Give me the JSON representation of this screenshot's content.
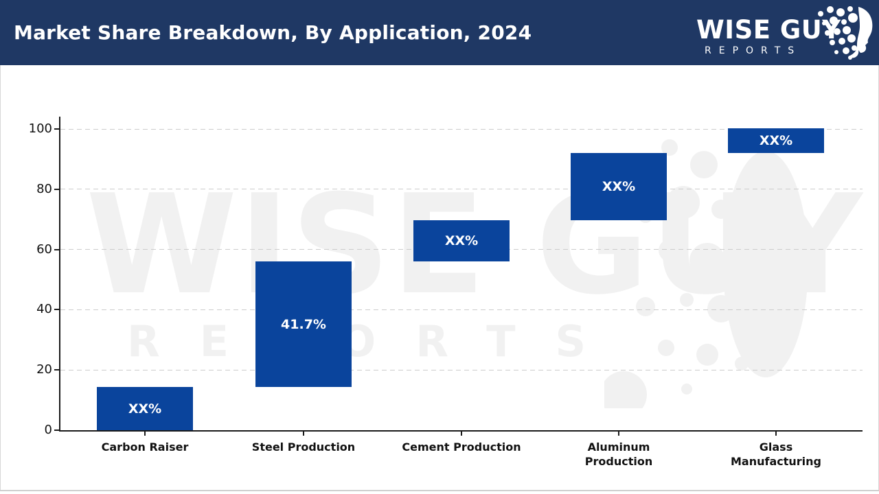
{
  "header": {
    "title": "Market Share Breakdown, By Application, 2024",
    "bg_color": "#1f3864",
    "logo": {
      "line1": "WISE GUY",
      "line2": "REPORTS"
    }
  },
  "watermark": {
    "line1": "WISE GUY",
    "line2": "REPORTS"
  },
  "chart_data": {
    "type": "bar",
    "subtype": "waterfall-floating-bars",
    "title": "Market Share Breakdown, By Application, 2024",
    "xlabel": "",
    "ylabel": "",
    "ylim": [
      0,
      100
    ],
    "yticks": [
      0,
      20,
      40,
      60,
      80,
      100
    ],
    "grid": "horizontal dashed",
    "legend": "none",
    "bar_color": "#0a449c",
    "bar_label_color": "#ffffff",
    "categories": [
      "Carbon Raiser",
      "Steel Production",
      "Cement Production",
      "Aluminum Production",
      "Glass Manufacturing"
    ],
    "category_lines": [
      [
        "Carbon Raiser"
      ],
      [
        "Steel Production"
      ],
      [
        "Cement Production"
      ],
      [
        "Aluminum",
        "Production"
      ],
      [
        "Glass",
        "Manufacturing"
      ]
    ],
    "series": [
      {
        "name": "Market Share",
        "segments": [
          {
            "category": "Carbon Raiser",
            "label": "XX%",
            "start": 0,
            "end": 14.3,
            "value": 14.3
          },
          {
            "category": "Steel Production",
            "label": "41.7%",
            "start": 14.3,
            "end": 56.0,
            "value": 41.7
          },
          {
            "category": "Cement Production",
            "label": "XX%",
            "start": 56.0,
            "end": 69.6,
            "value": 13.6
          },
          {
            "category": "Aluminum Production",
            "label": "XX%",
            "start": 69.6,
            "end": 92.0,
            "value": 22.4
          },
          {
            "category": "Glass Manufacturing",
            "label": "XX%",
            "start": 92.0,
            "end": 100.3,
            "value": 8.3
          }
        ]
      }
    ]
  }
}
